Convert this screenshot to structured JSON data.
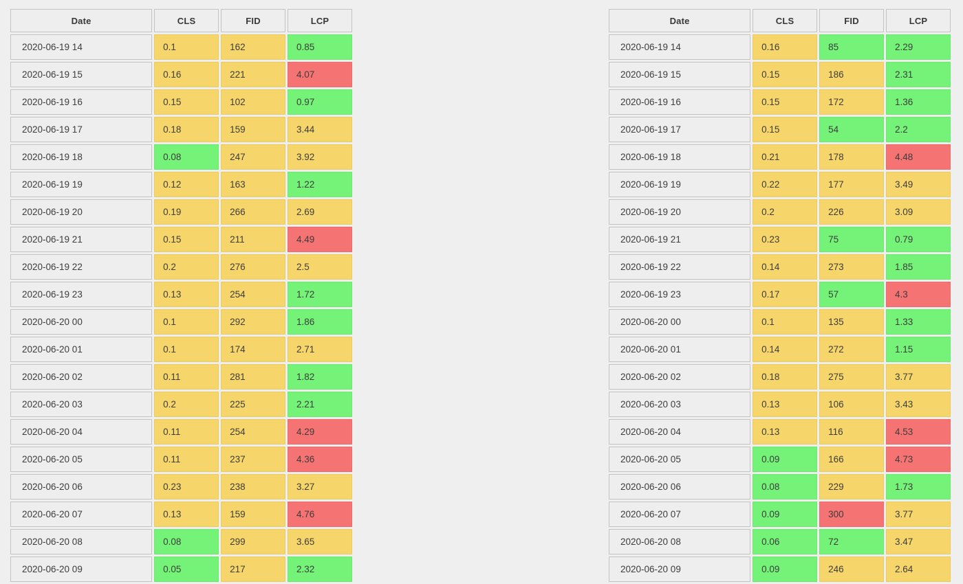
{
  "colors": {
    "good": "#75f378",
    "warn": "#f6d66a",
    "poor": "#f67374",
    "background": "#efefef",
    "cell_border": "#c3c3c3",
    "text": "#3c3c3c"
  },
  "chart_data": [
    {
      "type": "table",
      "name": "web-vitals-table-left",
      "columns": [
        "Date",
        "CLS",
        "FID",
        "LCP"
      ],
      "rows": [
        [
          "2020-06-19 14",
          "0.1",
          "162",
          "0.85"
        ],
        [
          "2020-06-19 15",
          "0.16",
          "221",
          "4.07"
        ],
        [
          "2020-06-19 16",
          "0.15",
          "102",
          "0.97"
        ],
        [
          "2020-06-19 17",
          "0.18",
          "159",
          "3.44"
        ],
        [
          "2020-06-19 18",
          "0.08",
          "247",
          "3.92"
        ],
        [
          "2020-06-19 19",
          "0.12",
          "163",
          "1.22"
        ],
        [
          "2020-06-19 20",
          "0.19",
          "266",
          "2.69"
        ],
        [
          "2020-06-19 21",
          "0.15",
          "211",
          "4.49"
        ],
        [
          "2020-06-19 22",
          "0.2",
          "276",
          "2.5"
        ],
        [
          "2020-06-19 23",
          "0.13",
          "254",
          "1.72"
        ],
        [
          "2020-06-20 00",
          "0.1",
          "292",
          "1.86"
        ],
        [
          "2020-06-20 01",
          "0.1",
          "174",
          "2.71"
        ],
        [
          "2020-06-20 02",
          "0.11",
          "281",
          "1.82"
        ],
        [
          "2020-06-20 03",
          "0.2",
          "225",
          "2.21"
        ],
        [
          "2020-06-20 04",
          "0.11",
          "254",
          "4.29"
        ],
        [
          "2020-06-20 05",
          "0.11",
          "237",
          "4.36"
        ],
        [
          "2020-06-20 06",
          "0.23",
          "238",
          "3.27"
        ],
        [
          "2020-06-20 07",
          "0.13",
          "159",
          "4.76"
        ],
        [
          "2020-06-20 08",
          "0.08",
          "299",
          "3.65"
        ],
        [
          "2020-06-20 09",
          "0.05",
          "217",
          "2.32"
        ]
      ],
      "cell_status": [
        [
          "warn",
          "warn",
          "good"
        ],
        [
          "warn",
          "warn",
          "poor"
        ],
        [
          "warn",
          "warn",
          "good"
        ],
        [
          "warn",
          "warn",
          "warn"
        ],
        [
          "good",
          "warn",
          "warn"
        ],
        [
          "warn",
          "warn",
          "good"
        ],
        [
          "warn",
          "warn",
          "warn"
        ],
        [
          "warn",
          "warn",
          "poor"
        ],
        [
          "warn",
          "warn",
          "warn"
        ],
        [
          "warn",
          "warn",
          "good"
        ],
        [
          "warn",
          "warn",
          "good"
        ],
        [
          "warn",
          "warn",
          "warn"
        ],
        [
          "warn",
          "warn",
          "good"
        ],
        [
          "warn",
          "warn",
          "good"
        ],
        [
          "warn",
          "warn",
          "poor"
        ],
        [
          "warn",
          "warn",
          "poor"
        ],
        [
          "warn",
          "warn",
          "warn"
        ],
        [
          "warn",
          "warn",
          "poor"
        ],
        [
          "good",
          "warn",
          "warn"
        ],
        [
          "good",
          "warn",
          "good"
        ]
      ]
    },
    {
      "type": "table",
      "name": "web-vitals-table-right",
      "columns": [
        "Date",
        "CLS",
        "FID",
        "LCP"
      ],
      "rows": [
        [
          "2020-06-19 14",
          "0.16",
          "85",
          "2.29"
        ],
        [
          "2020-06-19 15",
          "0.15",
          "186",
          "2.31"
        ],
        [
          "2020-06-19 16",
          "0.15",
          "172",
          "1.36"
        ],
        [
          "2020-06-19 17",
          "0.15",
          "54",
          "2.2"
        ],
        [
          "2020-06-19 18",
          "0.21",
          "178",
          "4.48"
        ],
        [
          "2020-06-19 19",
          "0.22",
          "177",
          "3.49"
        ],
        [
          "2020-06-19 20",
          "0.2",
          "226",
          "3.09"
        ],
        [
          "2020-06-19 21",
          "0.23",
          "75",
          "0.79"
        ],
        [
          "2020-06-19 22",
          "0.14",
          "273",
          "1.85"
        ],
        [
          "2020-06-19 23",
          "0.17",
          "57",
          "4.3"
        ],
        [
          "2020-06-20 00",
          "0.1",
          "135",
          "1.33"
        ],
        [
          "2020-06-20 01",
          "0.14",
          "272",
          "1.15"
        ],
        [
          "2020-06-20 02",
          "0.18",
          "275",
          "3.77"
        ],
        [
          "2020-06-20 03",
          "0.13",
          "106",
          "3.43"
        ],
        [
          "2020-06-20 04",
          "0.13",
          "116",
          "4.53"
        ],
        [
          "2020-06-20 05",
          "0.09",
          "166",
          "4.73"
        ],
        [
          "2020-06-20 06",
          "0.08",
          "229",
          "1.73"
        ],
        [
          "2020-06-20 07",
          "0.09",
          "300",
          "3.77"
        ],
        [
          "2020-06-20 08",
          "0.06",
          "72",
          "3.47"
        ],
        [
          "2020-06-20 09",
          "0.09",
          "246",
          "2.64"
        ]
      ],
      "cell_status": [
        [
          "warn",
          "good",
          "good"
        ],
        [
          "warn",
          "warn",
          "good"
        ],
        [
          "warn",
          "warn",
          "good"
        ],
        [
          "warn",
          "good",
          "good"
        ],
        [
          "warn",
          "warn",
          "poor"
        ],
        [
          "warn",
          "warn",
          "warn"
        ],
        [
          "warn",
          "warn",
          "warn"
        ],
        [
          "warn",
          "good",
          "good"
        ],
        [
          "warn",
          "warn",
          "good"
        ],
        [
          "warn",
          "good",
          "poor"
        ],
        [
          "warn",
          "warn",
          "good"
        ],
        [
          "warn",
          "warn",
          "good"
        ],
        [
          "warn",
          "warn",
          "warn"
        ],
        [
          "warn",
          "warn",
          "warn"
        ],
        [
          "warn",
          "warn",
          "poor"
        ],
        [
          "good",
          "warn",
          "poor"
        ],
        [
          "good",
          "warn",
          "good"
        ],
        [
          "good",
          "poor",
          "warn"
        ],
        [
          "good",
          "good",
          "warn"
        ],
        [
          "good",
          "warn",
          "warn"
        ]
      ]
    }
  ]
}
